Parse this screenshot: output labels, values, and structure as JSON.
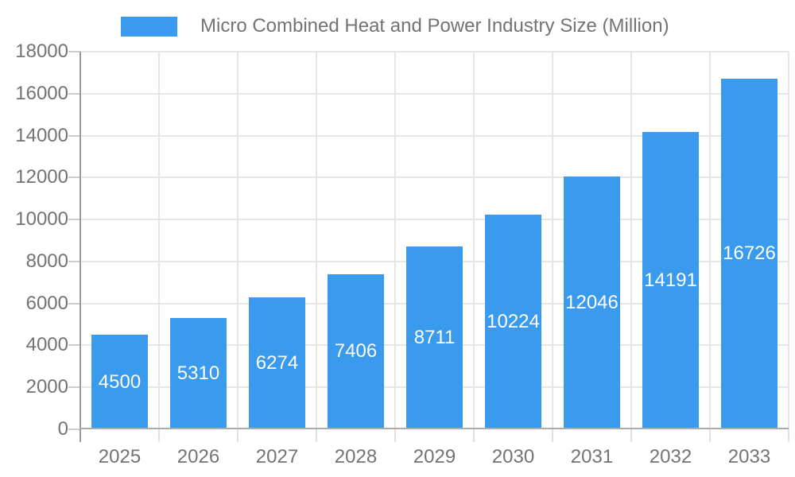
{
  "legend": {
    "title": "Micro Combined Heat and Power Industry Size (Million)"
  },
  "chart_data": {
    "type": "bar",
    "title": "Micro Combined Heat and Power Industry Size (Million)",
    "categories": [
      "2025",
      "2026",
      "2027",
      "2028",
      "2029",
      "2030",
      "2031",
      "2032",
      "2033"
    ],
    "values": [
      4500,
      5310,
      6274,
      7406,
      8711,
      10224,
      12046,
      14191,
      16726
    ],
    "value_labels": [
      "4500",
      "5310",
      "6274",
      "7406",
      "8711",
      "10224",
      "12046",
      "14191",
      "16726"
    ],
    "xlabel": "",
    "ylabel": "",
    "ylim": [
      0,
      18000
    ],
    "yticks": [
      0,
      2000,
      4000,
      6000,
      8000,
      10000,
      12000,
      14000,
      16000,
      18000
    ],
    "grid": true,
    "legend_position": "top",
    "value_label_position": "inside-center"
  },
  "colors": {
    "bar": "#399AEE",
    "grid": "#e6e6e6",
    "axis": "#999999",
    "baseline": "#ababab",
    "ytick": "#cccccc",
    "xtick": "#e0e0e0",
    "text": "#737373",
    "value_label": "#ffffff",
    "background": "#ffffff"
  }
}
